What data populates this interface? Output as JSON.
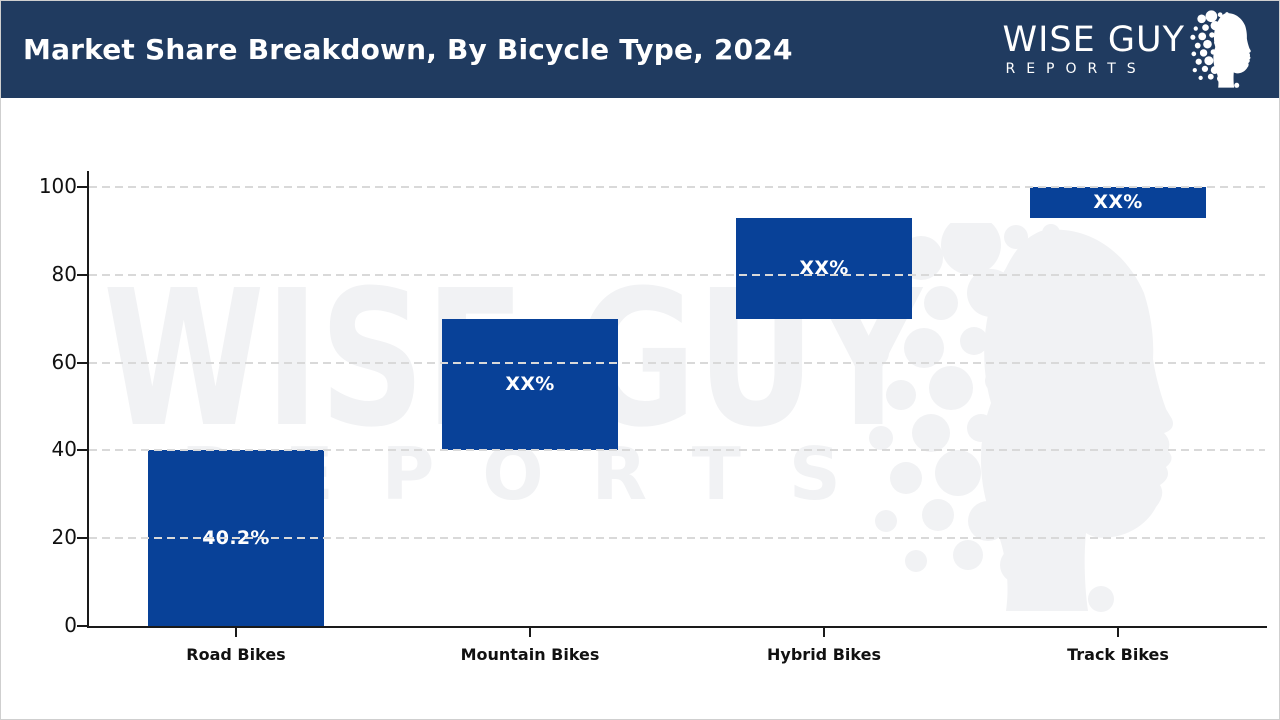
{
  "header": {
    "title": "Market Share Breakdown, By Bicycle Type, 2024",
    "logo": {
      "line1": "WISE GUY",
      "line2": "REPORTS",
      "icon": "face-profile-dots-icon"
    }
  },
  "watermark": {
    "line1": "WISE GUY",
    "line2": "REPORTS"
  },
  "colors": {
    "header_bg": "#203b60",
    "bar_blue": "#084198",
    "bar_label_text": "#ffffff",
    "grid_gray": "#d9d9d9",
    "axis_black": "#1a1a1a",
    "watermark_gray": "#f1f2f4"
  },
  "chart_data": {
    "type": "bar",
    "subtype": "floating-stacked-percentage-waterfall",
    "title": "Market Share Breakdown, By Bicycle Type, 2024",
    "categories": [
      "Road Bikes",
      "Mountain Bikes",
      "Hybrid Bikes",
      "Track Bikes"
    ],
    "segments": [
      {
        "category": "Road Bikes",
        "start": 0,
        "end": 40.2,
        "label": "40.2%"
      },
      {
        "category": "Mountain Bikes",
        "start": 40.2,
        "end": 70,
        "label": "XX%"
      },
      {
        "category": "Hybrid Bikes",
        "start": 70,
        "end": 93,
        "label": "XX%"
      },
      {
        "category": "Track Bikes",
        "start": 93,
        "end": 100,
        "label": "XX%"
      }
    ],
    "xlabel": "",
    "ylabel": "",
    "ylim": [
      0,
      100
    ],
    "yticks": [
      0,
      20,
      40,
      60,
      80,
      100
    ],
    "grid": "dashed-horizontal",
    "legend": "none",
    "bar_color": "#084198"
  }
}
